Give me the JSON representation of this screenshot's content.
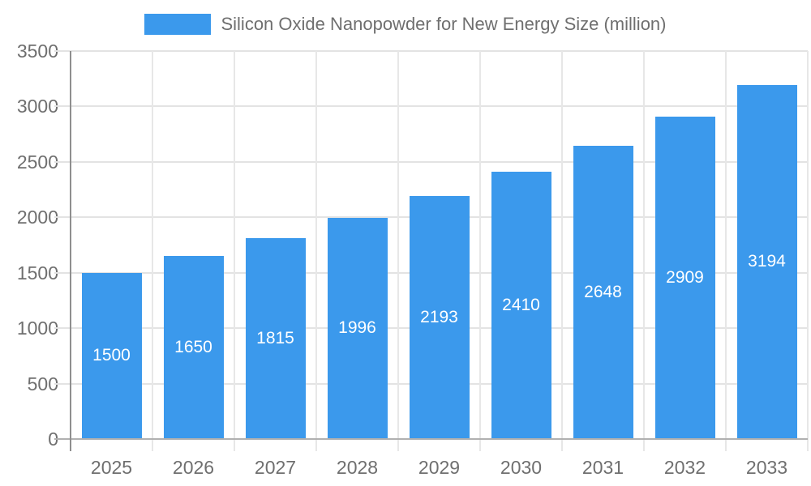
{
  "chart_data": {
    "type": "bar",
    "title": "Silicon Oxide Nanopowder for New Energy Size (million)",
    "categories": [
      "2025",
      "2026",
      "2027",
      "2028",
      "2029",
      "2030",
      "2031",
      "2032",
      "2033"
    ],
    "values": [
      1500,
      1650,
      1815,
      1996,
      2193,
      2410,
      2648,
      2909,
      3194
    ],
    "series": [
      {
        "name": "Silicon Oxide Nanopowder for New Energy Size (million)",
        "values": [
          1500,
          1650,
          1815,
          1996,
          2193,
          2410,
          2648,
          2909,
          3194
        ]
      }
    ],
    "xlabel": "",
    "ylabel": "",
    "ylim": [
      0,
      3500
    ],
    "yticks": [
      0,
      500,
      1000,
      1500,
      2000,
      2500,
      3000,
      3500
    ],
    "grid": true,
    "legend_position": "top-center",
    "value_labels": "inside-center",
    "colors": {
      "bar": "#3b99ec",
      "value_label_text": "#ffffff",
      "axis_text": "#6f6f6f",
      "grid_line_h": "#e3e3e3",
      "grid_line_v": "#e7e7e7",
      "y_axis_line": "#8f8f8f",
      "x_baseline": "#b0b0b0",
      "background": "#ffffff"
    }
  }
}
